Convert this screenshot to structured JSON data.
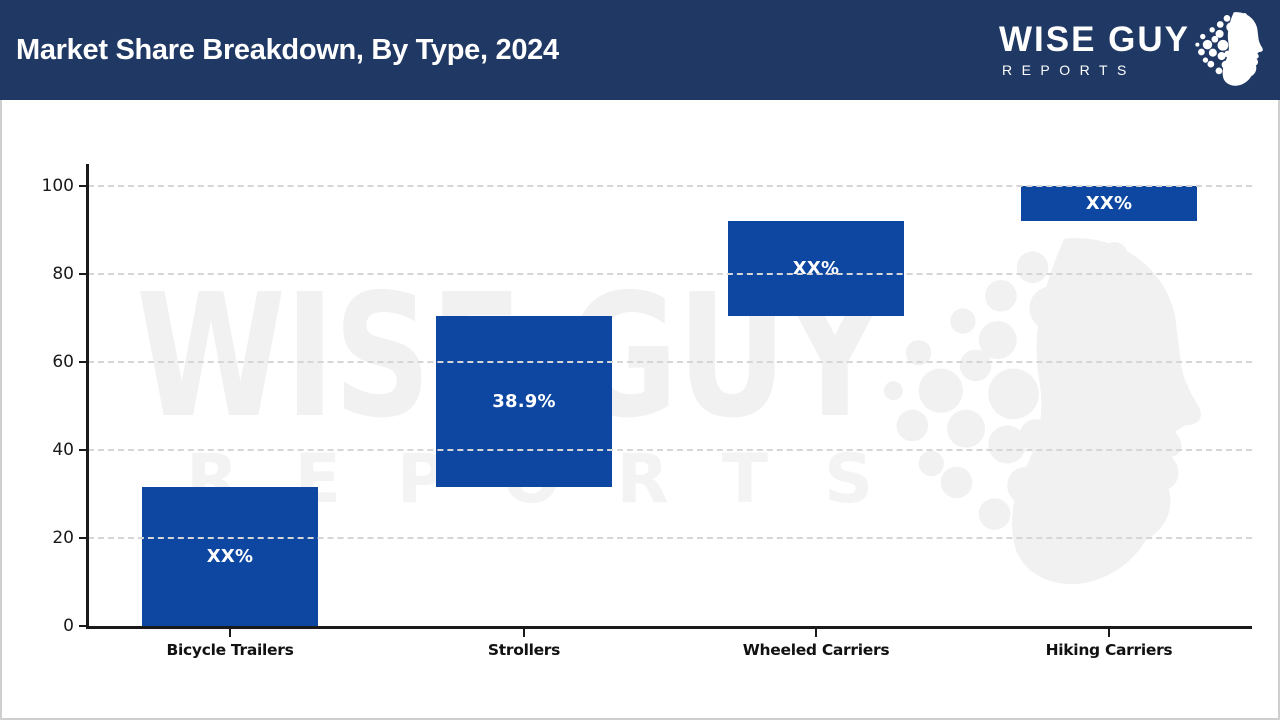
{
  "header": {
    "title": "Market Share Breakdown, By Type, 2024",
    "logo": {
      "wordmark": "WISE GUY",
      "subtext": "REPORTS"
    }
  },
  "watermark": {
    "wordmark": "WISE GUY",
    "subtext": "REPORTS"
  },
  "chart_data": {
    "type": "bar",
    "subtype": "waterfall",
    "title": "Market Share Breakdown, By Type, 2024",
    "categories": [
      "Bicycle Trailers",
      "Strollers",
      "Wheeled Carriers",
      "Hiking Carriers"
    ],
    "segments": [
      {
        "category": "Bicycle Trailers",
        "start": 0,
        "end": 31.5,
        "value": 31.5,
        "label": "XX%"
      },
      {
        "category": "Strollers",
        "start": 31.5,
        "end": 70.4,
        "value": 38.9,
        "label": "38.9%"
      },
      {
        "category": "Wheeled Carriers",
        "start": 70.4,
        "end": 92,
        "value": 21.6,
        "label": "XX%"
      },
      {
        "category": "Hiking Carriers",
        "start": 92,
        "end": 100,
        "value": 8,
        "label": "XX%"
      }
    ],
    "yticks": [
      0,
      20,
      40,
      60,
      80,
      100
    ],
    "ylim": [
      0,
      105
    ],
    "xlabel": "",
    "ylabel": "",
    "grid": "horizontal-dashed",
    "legend": "none",
    "bar_color": "#0d47a1",
    "bar_label_color": "#ffffff",
    "header_color": "#203864"
  }
}
